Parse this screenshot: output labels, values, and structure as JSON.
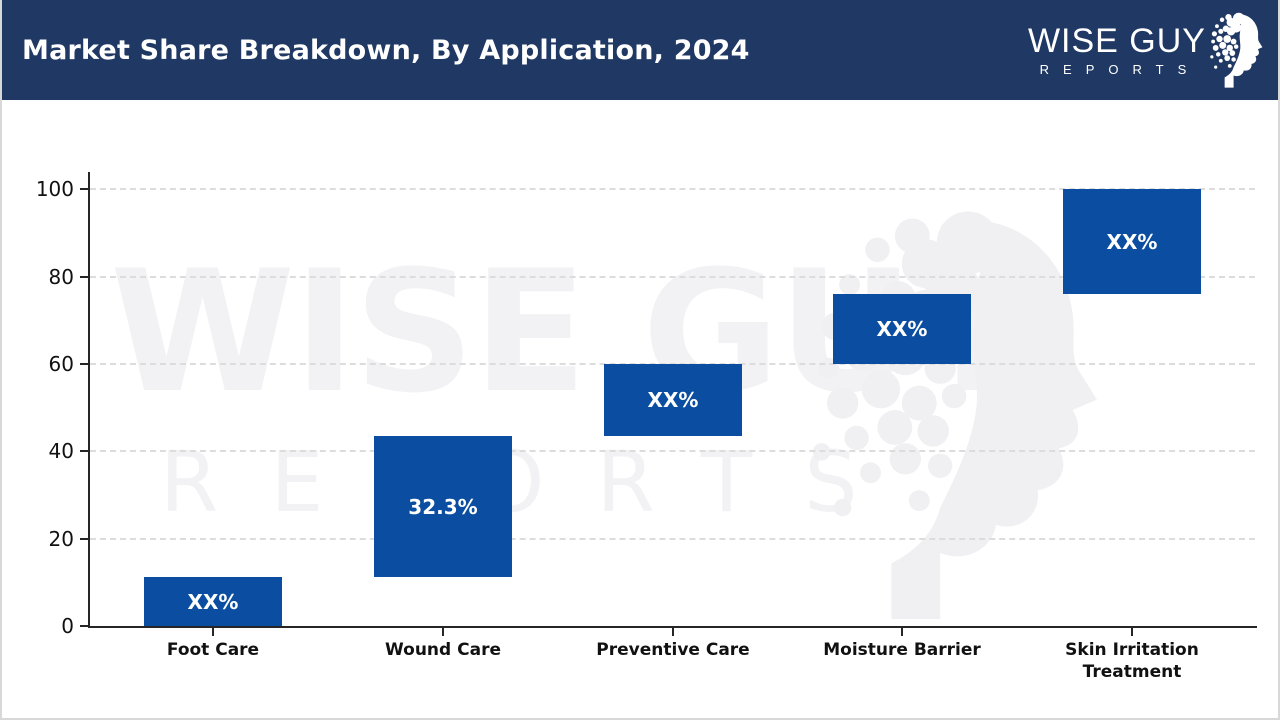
{
  "header": {
    "title": "Market Share Breakdown, By Application, 2024",
    "background": "#203864",
    "logo": {
      "name": "WISE GUY",
      "sub": "REPORTS"
    }
  },
  "watermark": {
    "line1": "WISE GUY",
    "line2": "REPORTS"
  },
  "chart_data": {
    "type": "bar",
    "variant": "waterfall",
    "title": "Market Share Breakdown, By Application, 2024",
    "xlabel": "",
    "ylabel": "",
    "categories": [
      "Foot Care",
      "Wound Care",
      "Preventive Care",
      "Moisture Barrier",
      "Skin Irritation Treatment"
    ],
    "segments": [
      {
        "category": "Foot Care",
        "start": 0,
        "end": 11.2,
        "value_label": "XX%"
      },
      {
        "category": "Wound Care",
        "start": 11.2,
        "end": 43.5,
        "value": 32.3,
        "value_label": "32.3%"
      },
      {
        "category": "Preventive Care",
        "start": 43.5,
        "end": 60.1,
        "value_label": "XX%"
      },
      {
        "category": "Moisture Barrier",
        "start": 60.1,
        "end": 76.1,
        "value_label": "XX%"
      },
      {
        "category": "Skin Irritation Treatment",
        "start": 76.1,
        "end": 100,
        "value_label": "XX%"
      }
    ],
    "yticks": [
      0,
      20,
      40,
      60,
      80,
      100
    ],
    "ylim": [
      0,
      104
    ],
    "grid": true,
    "gridline_style": "dashed",
    "gridline_color": "#dcdcdc",
    "axis_color": "#262626",
    "bar_color": "#0b4da0",
    "bar_label_color": "#ffffff",
    "legend": "none"
  }
}
